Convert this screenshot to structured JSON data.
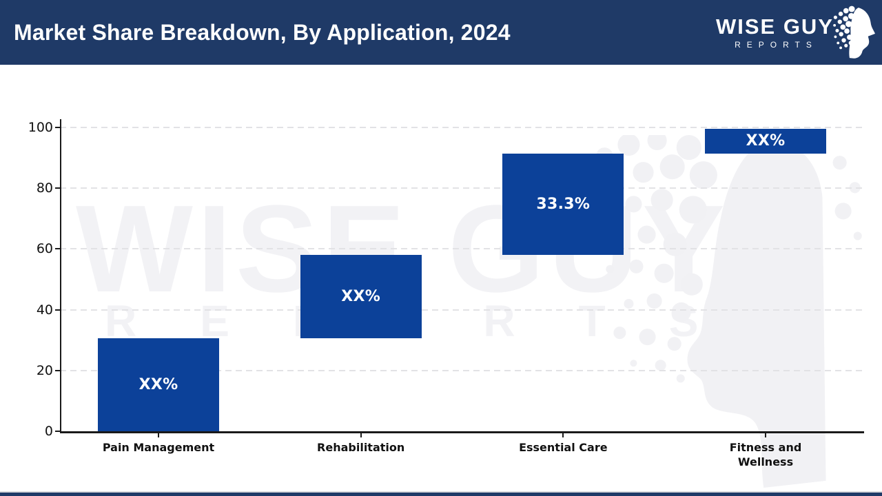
{
  "header": {
    "title": "Market Share Breakdown, By Application, 2024",
    "logo": {
      "line1": "WISE GUY",
      "line2": "REPORTS"
    }
  },
  "watermark": {
    "line1": "WISE GUY",
    "line2": "REPORTS"
  },
  "chart_data": {
    "type": "bar",
    "subtype": "waterfall",
    "title": "Market Share Breakdown, By Application, 2024",
    "categories": [
      "Pain Management",
      "Rehabilitation",
      "Essential Care",
      "Fitness and Wellness"
    ],
    "x_tick_labels": [
      "Pain Management",
      "Rehabilitation",
      "Essential Care",
      "Fitness and\nWellness"
    ],
    "segments": [
      {
        "category": "Pain Management",
        "start": 0,
        "end": 30.5,
        "label": "XX%"
      },
      {
        "category": "Rehabilitation",
        "start": 30.5,
        "end": 58.1,
        "label": "XX%"
      },
      {
        "category": "Essential Care",
        "start": 58.1,
        "end": 91.4,
        "label": "33.3%"
      },
      {
        "category": "Fitness and Wellness",
        "start": 91.4,
        "end": 99.6,
        "label": "XX%"
      }
    ],
    "ylim": [
      0,
      100
    ],
    "yticks": [
      0,
      20,
      40,
      60,
      80,
      100
    ],
    "xlabel": "",
    "ylabel": "",
    "grid": "horizontal-dashed",
    "legend": "none"
  },
  "colors": {
    "header_bg": "#1f3a67",
    "footer_bar": "#1f3a67",
    "bar_fill": "#0c4199",
    "watermark": "#f2f2f5",
    "gridline": "#e2e2e5",
    "axis": "#1a1a1a",
    "bar_label_text": "#ffffff",
    "title_text": "#ffffff"
  }
}
